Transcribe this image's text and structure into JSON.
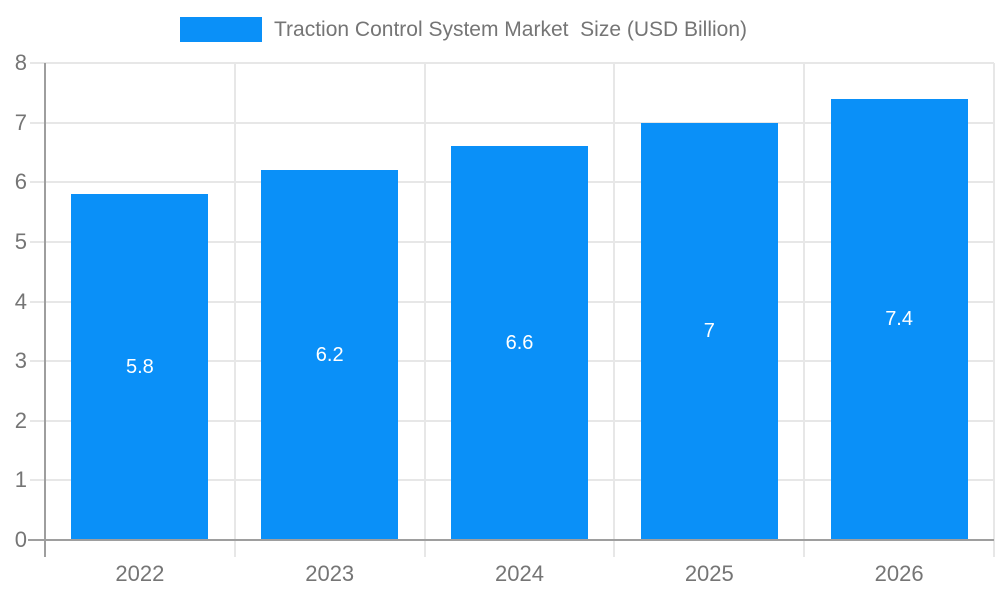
{
  "chart_data": {
    "type": "bar",
    "title": "Traction Control System Market  Size (USD Billion)",
    "legend": {
      "label": "Traction Control System Market  Size (USD Billion)",
      "position": "top"
    },
    "categories": [
      "2022",
      "2023",
      "2024",
      "2025",
      "2026"
    ],
    "series": [
      {
        "name": "Traction Control System Market  Size (USD Billion)",
        "values": [
          5.8,
          6.2,
          6.6,
          7,
          7.4
        ]
      }
    ],
    "value_labels": [
      "5.8",
      "6.2",
      "6.6",
      "7",
      "7.4"
    ],
    "xlabel": "",
    "ylabel": "",
    "ylim": [
      0,
      8
    ],
    "yticks": [
      0,
      1,
      2,
      3,
      4,
      5,
      6,
      7,
      8
    ],
    "grid": true,
    "colors": {
      "bar": "#0A90F8",
      "gridline": "#e7e7e7",
      "axis": "#9e9e9e",
      "axis_text": "#757575",
      "value_label_text": "#ffffff",
      "background": "#ffffff"
    }
  }
}
